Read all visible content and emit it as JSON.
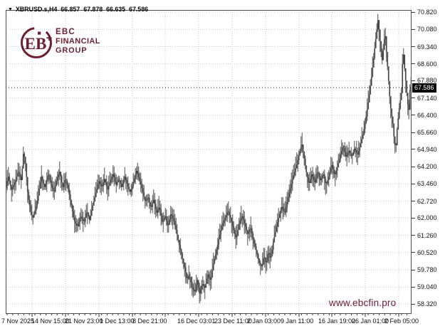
{
  "header": {
    "dropdown_icon": "▼",
    "symbol": "XBRUSD.s,H4",
    "open": "66.857",
    "high": "67.878",
    "low": "66.635",
    "close": "67.586"
  },
  "logo": {
    "monogram": "EB",
    "plus": "+",
    "line1": "EBC",
    "line2": "FINANCIAL",
    "line3": "GROUP",
    "color": "#6d1f2d"
  },
  "watermark": "www.ebcfin.pro",
  "chart_data": {
    "type": "bar",
    "subtype": "ohlc-candlestick-series",
    "title": "XBRUSD.s H4 price chart",
    "symbol": "XBRUSD.s",
    "timeframe": "H4",
    "quote": {
      "open": 66.857,
      "high": 67.878,
      "low": 66.635,
      "close": 67.586
    },
    "current_price": "67.586",
    "grid": true,
    "legend_position": "none",
    "ylim": [
      58.32,
      70.82
    ],
    "y_axis_ticks": [
      "70.820",
      "70.080",
      "69.340",
      "68.600",
      "67.880",
      "67.140",
      "66.400",
      "65.660",
      "64.940",
      "64.200",
      "63.460",
      "62.720",
      "62.000",
      "61.260",
      "60.520",
      "59.780",
      "59.040",
      "58.320"
    ],
    "x_axis_labels": [
      "7 Nov 2025",
      "14 Nov 15:00",
      "21 Nov 23:00",
      "1 Dec 13:00",
      "8 Dec 21:00",
      "16 Dec 03:01",
      "23 Dec 11:00",
      "2 Jan 03:00",
      "9 Jan 11:00",
      "16 Jan 19:00",
      "26 Jan 01:00",
      "2 Feb 05:00"
    ],
    "x_unit": "px_from_plot_left (0-570), sampled visual price path",
    "price_path": [
      [
        0,
        63.3
      ],
      [
        4,
        63.8
      ],
      [
        8,
        63.2
      ],
      [
        14,
        63.6
      ],
      [
        18,
        64.0
      ],
      [
        22,
        63.6
      ],
      [
        25,
        64.85
      ],
      [
        28,
        64.3
      ],
      [
        31,
        63.0
      ],
      [
        35,
        62.3
      ],
      [
        38,
        62.0
      ],
      [
        42,
        62.4
      ],
      [
        46,
        63.0
      ],
      [
        50,
        63.8
      ],
      [
        55,
        63.3
      ],
      [
        60,
        63.9
      ],
      [
        64,
        63.4
      ],
      [
        68,
        63.1
      ],
      [
        72,
        63.7
      ],
      [
        76,
        64.0
      ],
      [
        80,
        63.3
      ],
      [
        84,
        63.7
      ],
      [
        88,
        63.2
      ],
      [
        92,
        62.6
      ],
      [
        96,
        61.9
      ],
      [
        101,
        61.6
      ],
      [
        105,
        62.1
      ],
      [
        110,
        61.8
      ],
      [
        114,
        62.3
      ],
      [
        118,
        61.9
      ],
      [
        122,
        62.5
      ],
      [
        127,
        63.1
      ],
      [
        131,
        63.6
      ],
      [
        135,
        63.3
      ],
      [
        139,
        63.7
      ],
      [
        143,
        63.2
      ],
      [
        147,
        63.6
      ],
      [
        151,
        63.9
      ],
      [
        155,
        63.4
      ],
      [
        159,
        63.7
      ],
      [
        163,
        63.3
      ],
      [
        167,
        63.8
      ],
      [
        171,
        63.4
      ],
      [
        175,
        63.1
      ],
      [
        179,
        63.5
      ],
      [
        184,
        64.05
      ],
      [
        188,
        63.6
      ],
      [
        192,
        63.2
      ],
      [
        196,
        62.7
      ],
      [
        200,
        62.9
      ],
      [
        204,
        62.4
      ],
      [
        208,
        62.8
      ],
      [
        212,
        62.2
      ],
      [
        216,
        62.5
      ],
      [
        220,
        61.8
      ],
      [
        224,
        62.1
      ],
      [
        228,
        61.6
      ],
      [
        232,
        62.2
      ],
      [
        236,
        61.9
      ],
      [
        240,
        61.4
      ],
      [
        244,
        60.8
      ],
      [
        248,
        60.3
      ],
      [
        252,
        59.8
      ],
      [
        255,
        59.3
      ],
      [
        258,
        59.6
      ],
      [
        262,
        59.0
      ],
      [
        266,
        58.8
      ],
      [
        269,
        59.4
      ],
      [
        272,
        58.75
      ],
      [
        276,
        59.2
      ],
      [
        280,
        59.0
      ],
      [
        284,
        59.6
      ],
      [
        288,
        59.3
      ],
      [
        292,
        60.1
      ],
      [
        296,
        60.6
      ],
      [
        300,
        61.2
      ],
      [
        304,
        61.7
      ],
      [
        308,
        62.0
      ],
      [
        312,
        62.3
      ],
      [
        316,
        62.0
      ],
      [
        320,
        61.5
      ],
      [
        324,
        61.1
      ],
      [
        328,
        61.8
      ],
      [
        332,
        62.1
      ],
      [
        336,
        61.7
      ],
      [
        340,
        61.3
      ],
      [
        344,
        61.6
      ],
      [
        348,
        61.0
      ],
      [
        352,
        60.6
      ],
      [
        356,
        60.1
      ],
      [
        360,
        59.9
      ],
      [
        363,
        60.4
      ],
      [
        366,
        60.0
      ],
      [
        369,
        60.6
      ],
      [
        372,
        60.2
      ],
      [
        376,
        61.0
      ],
      [
        380,
        61.6
      ],
      [
        384,
        62.1
      ],
      [
        388,
        62.5
      ],
      [
        392,
        62.2
      ],
      [
        396,
        62.8
      ],
      [
        400,
        63.3
      ],
      [
        404,
        63.8
      ],
      [
        408,
        64.2
      ],
      [
        412,
        64.7
      ],
      [
        416,
        65.2
      ],
      [
        419,
        64.6
      ],
      [
        422,
        64.0
      ],
      [
        426,
        63.4
      ],
      [
        430,
        63.9
      ],
      [
        434,
        63.5
      ],
      [
        438,
        64.0
      ],
      [
        442,
        63.6
      ],
      [
        446,
        63.9
      ],
      [
        450,
        63.4
      ],
      [
        454,
        63.8
      ],
      [
        458,
        64.3
      ],
      [
        462,
        63.8
      ],
      [
        466,
        64.2
      ],
      [
        470,
        64.7
      ],
      [
        474,
        65.1
      ],
      [
        478,
        64.6
      ],
      [
        482,
        64.9
      ],
      [
        486,
        64.6
      ],
      [
        490,
        65.0
      ],
      [
        494,
        64.7
      ],
      [
        498,
        65.1
      ],
      [
        502,
        65.6
      ],
      [
        506,
        66.3
      ],
      [
        510,
        67.1
      ],
      [
        514,
        68.1
      ],
      [
        518,
        69.2
      ],
      [
        521,
        70.0
      ],
      [
        523,
        70.55
      ],
      [
        525,
        69.8
      ],
      [
        527,
        69.2
      ],
      [
        529,
        68.7
      ],
      [
        531,
        69.5
      ],
      [
        533,
        69.9
      ],
      [
        535,
        69.0
      ],
      [
        537,
        68.2
      ],
      [
        539,
        67.3
      ],
      [
        541,
        66.6
      ],
      [
        544,
        66.0
      ],
      [
        546,
        65.2
      ],
      [
        548,
        65.0
      ],
      [
        550,
        65.9
      ],
      [
        552,
        66.5
      ],
      [
        554,
        67.0
      ],
      [
        556,
        67.4
      ],
      [
        558,
        69.3
      ],
      [
        560,
        68.5
      ],
      [
        562,
        67.8
      ],
      [
        564,
        67.1
      ],
      [
        566,
        66.5
      ],
      [
        568,
        67.6
      ],
      [
        570,
        67.586
      ]
    ],
    "colors": {
      "bars": "#606060",
      "bar_bodies": "#474747",
      "grid": "#c9c9c9",
      "frame": "#4d4d4d",
      "current_price_line": "#111111",
      "badge_bg": "#000000",
      "badge_text": "#ffffff",
      "brand": "#6d1f2d"
    }
  }
}
